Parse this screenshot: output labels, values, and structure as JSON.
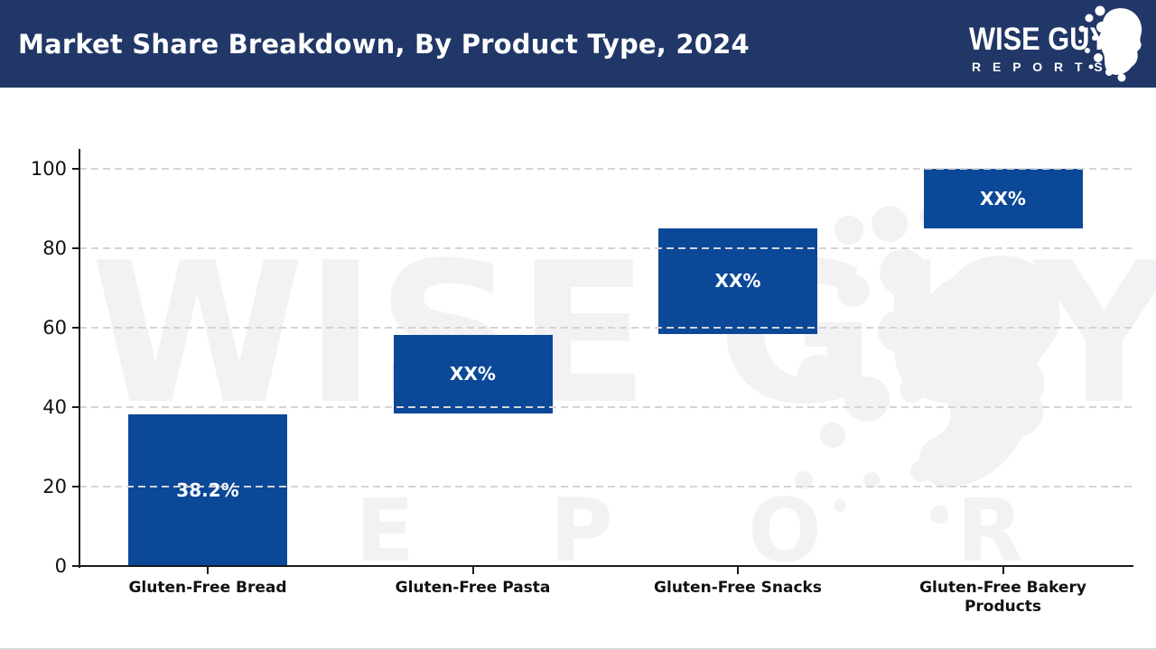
{
  "header": {
    "title": "Market Share Breakdown, By Product Type, 2024",
    "logo_line1": "WISE GUY",
    "logo_line2": "R E P O R T S"
  },
  "watermark": {
    "line1": "WISE GUY",
    "line2": "R E P O R T S"
  },
  "chart_data": {
    "type": "bar",
    "variant": "floating-segment-waterfall",
    "title": "Market Share Breakdown, By Product Type, 2024",
    "categories": [
      "Gluten-Free Bread",
      "Gluten-Free Pasta",
      "Gluten-Free Snacks",
      "Gluten-Free Bakery Products"
    ],
    "segments": [
      {
        "category": "Gluten-Free Bread",
        "start": 0,
        "end": 38.2,
        "label": "38.2%"
      },
      {
        "category": "Gluten-Free Pasta",
        "start": 38.5,
        "end": 58.2,
        "label": "XX%"
      },
      {
        "category": "Gluten-Free Snacks",
        "start": 58.5,
        "end": 85,
        "label": "XX%"
      },
      {
        "category": "Gluten-Free Bakery Products",
        "start": 85,
        "end": 100,
        "label": "XX%"
      }
    ],
    "bar_color": "#0b4898",
    "bar_label_color": "#ffffff",
    "yticks": [
      0,
      20,
      40,
      60,
      80,
      100
    ],
    "ylim": [
      0,
      100
    ],
    "grid": "horizontal-dashed",
    "grid_color": "#d4d4d8",
    "axis_color": "#1a1a1a",
    "legend": "none"
  },
  "colors": {
    "header_bg": "#213767",
    "bar_blue": "#0b4898",
    "watermark_gray": "#f2f2f4",
    "text_dark": "#111111"
  }
}
